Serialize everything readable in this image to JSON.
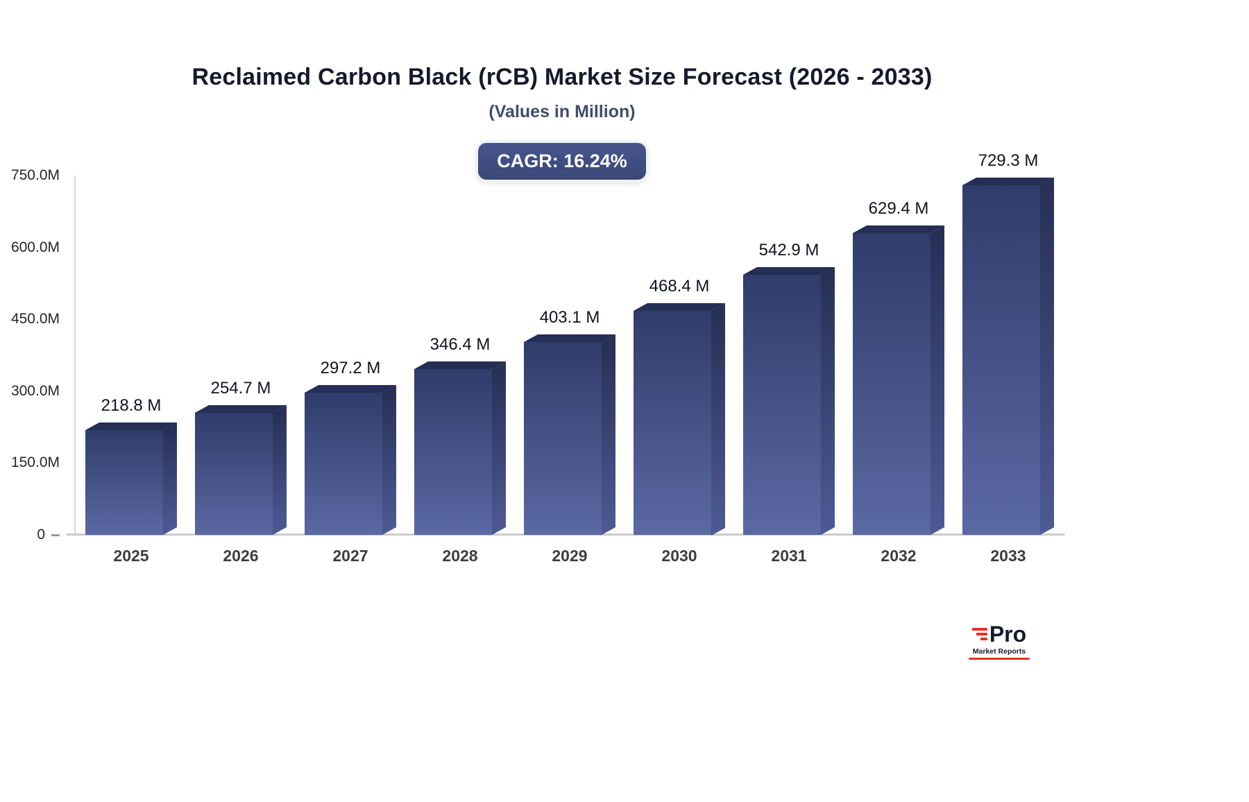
{
  "title": "Reclaimed Carbon Black (rCB) Market Size Forecast (2026 - 2033)",
  "subtitle": "(Values in Million)",
  "badge": {
    "label": "CAGR: 16.24%"
  },
  "chart_data": {
    "type": "bar",
    "title": "Reclaimed Carbon Black (rCB) Market Size Forecast (2026 - 2033)",
    "subtitle": "(Values in Million)",
    "categories": [
      "2025",
      "2026",
      "2027",
      "2028",
      "2029",
      "2030",
      "2031",
      "2032",
      "2033"
    ],
    "values": [
      218.8,
      254.7,
      297.2,
      346.4,
      403.1,
      468.4,
      542.9,
      629.4,
      729.3
    ],
    "value_labels": [
      "218.8 M",
      "254.7 M",
      "297.2 M",
      "346.4 M",
      "403.1 M",
      "468.4 M",
      "542.9 M",
      "629.4 M",
      "729.3 M"
    ],
    "unit": "M",
    "xlabel": "",
    "ylabel": "",
    "ylim": [
      0,
      750
    ],
    "y_ticks": [
      {
        "value": 750,
        "label": "750.0M"
      },
      {
        "value": 600,
        "label": "600.0M"
      },
      {
        "value": 450,
        "label": "450.0M"
      },
      {
        "value": 300,
        "label": "300.0M"
      },
      {
        "value": 150,
        "label": "150.0M"
      },
      {
        "value": 0,
        "label": "0"
      }
    ],
    "legend": "none",
    "grid": "off"
  },
  "colors": {
    "bar_top": "#303c6a",
    "bar_bottom": "#5b69a4",
    "badge_bg": "#3e4d80",
    "accent_red": "#e23127",
    "title_text": "#15192b",
    "subtitle_text": "#3e4c6e"
  },
  "logo": {
    "name": "Pro",
    "tagline": "Market Reports"
  }
}
